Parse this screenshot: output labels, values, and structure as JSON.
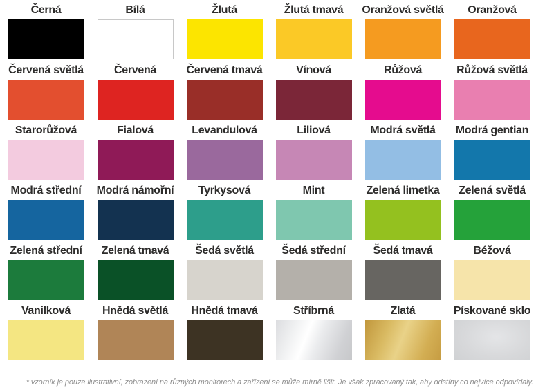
{
  "palette": {
    "colors": [
      {
        "label": "Černá",
        "hex": "#000000",
        "finish": "solid"
      },
      {
        "label": "Bílá",
        "hex": "#ffffff",
        "finish": "bordered",
        "border_color": "#c8c8c8"
      },
      {
        "label": "Žlutá",
        "hex": "#fce500",
        "finish": "solid"
      },
      {
        "label": "Žlutá tmavá",
        "hex": "#fbc926",
        "finish": "solid"
      },
      {
        "label": "Oranžová světlá",
        "hex": "#f59b20",
        "finish": "solid"
      },
      {
        "label": "Oranžová",
        "hex": "#e8661e",
        "finish": "solid"
      },
      {
        "label": "Červená světlá",
        "hex": "#e34f2f",
        "finish": "solid"
      },
      {
        "label": "Červená",
        "hex": "#de2421",
        "finish": "solid"
      },
      {
        "label": "Červená tmavá",
        "hex": "#992e28",
        "finish": "solid"
      },
      {
        "label": "Vínová",
        "hex": "#7b2638",
        "finish": "solid"
      },
      {
        "label": "Růžová",
        "hex": "#e50c8e",
        "finish": "solid"
      },
      {
        "label": "Růžová světlá",
        "hex": "#e97fb0",
        "finish": "solid"
      },
      {
        "label": "Starorůžová",
        "hex": "#f3cbdf",
        "finish": "solid"
      },
      {
        "label": "Fialová",
        "hex": "#8f1a57",
        "finish": "solid"
      },
      {
        "label": "Levandulová",
        "hex": "#9a699d",
        "finish": "solid"
      },
      {
        "label": "Liliová",
        "hex": "#c687b5",
        "finish": "solid"
      },
      {
        "label": "Modrá světlá",
        "hex": "#93bee4",
        "finish": "solid"
      },
      {
        "label": "Modrá gentian",
        "hex": "#1377ab",
        "finish": "solid"
      },
      {
        "label": "Modrá střední",
        "hex": "#15659f",
        "finish": "solid"
      },
      {
        "label": "Modrá námořní",
        "hex": "#133250",
        "finish": "solid"
      },
      {
        "label": "Tyrkysová",
        "hex": "#2d9e8b",
        "finish": "solid"
      },
      {
        "label": "Mint",
        "hex": "#7fc7af",
        "finish": "solid"
      },
      {
        "label": "Zelená limetka",
        "hex": "#94c11f",
        "finish": "solid"
      },
      {
        "label": "Zelená světlá",
        "hex": "#25a23a",
        "finish": "solid"
      },
      {
        "label": "Zelená střední",
        "hex": "#1c7b3c",
        "finish": "solid"
      },
      {
        "label": "Zelená tmavá",
        "hex": "#0a5127",
        "finish": "solid"
      },
      {
        "label": "Šedá světlá",
        "hex": "#d7d4cd",
        "finish": "solid"
      },
      {
        "label": "Šedá střední",
        "hex": "#b4b0aa",
        "finish": "solid"
      },
      {
        "label": "Šedá tmavá",
        "hex": "#676561",
        "finish": "solid"
      },
      {
        "label": "Béžová",
        "hex": "#f6e4aa",
        "finish": "solid"
      },
      {
        "label": "Vanilková",
        "hex": "#f4e682",
        "finish": "solid"
      },
      {
        "label": "Hnědá světlá",
        "hex": "#b08557",
        "finish": "solid"
      },
      {
        "label": "Hnědá tmavá",
        "hex": "#3d3323",
        "finish": "solid"
      },
      {
        "label": "Stříbrná",
        "hex": "#dcdde0",
        "finish": "silver"
      },
      {
        "label": "Zlatá",
        "hex": "#d3af58",
        "finish": "gold"
      },
      {
        "label": "Pískované sklo",
        "hex": "#d7d8da",
        "finish": "frosted"
      }
    ]
  },
  "footer": {
    "note": "* vzorník je pouze ilustrativní, zobrazení na různých monitorech a zařízení se může mírně lišit. Je však zpracovaný tak, aby odstíny co nejvíce odpovídaly."
  }
}
